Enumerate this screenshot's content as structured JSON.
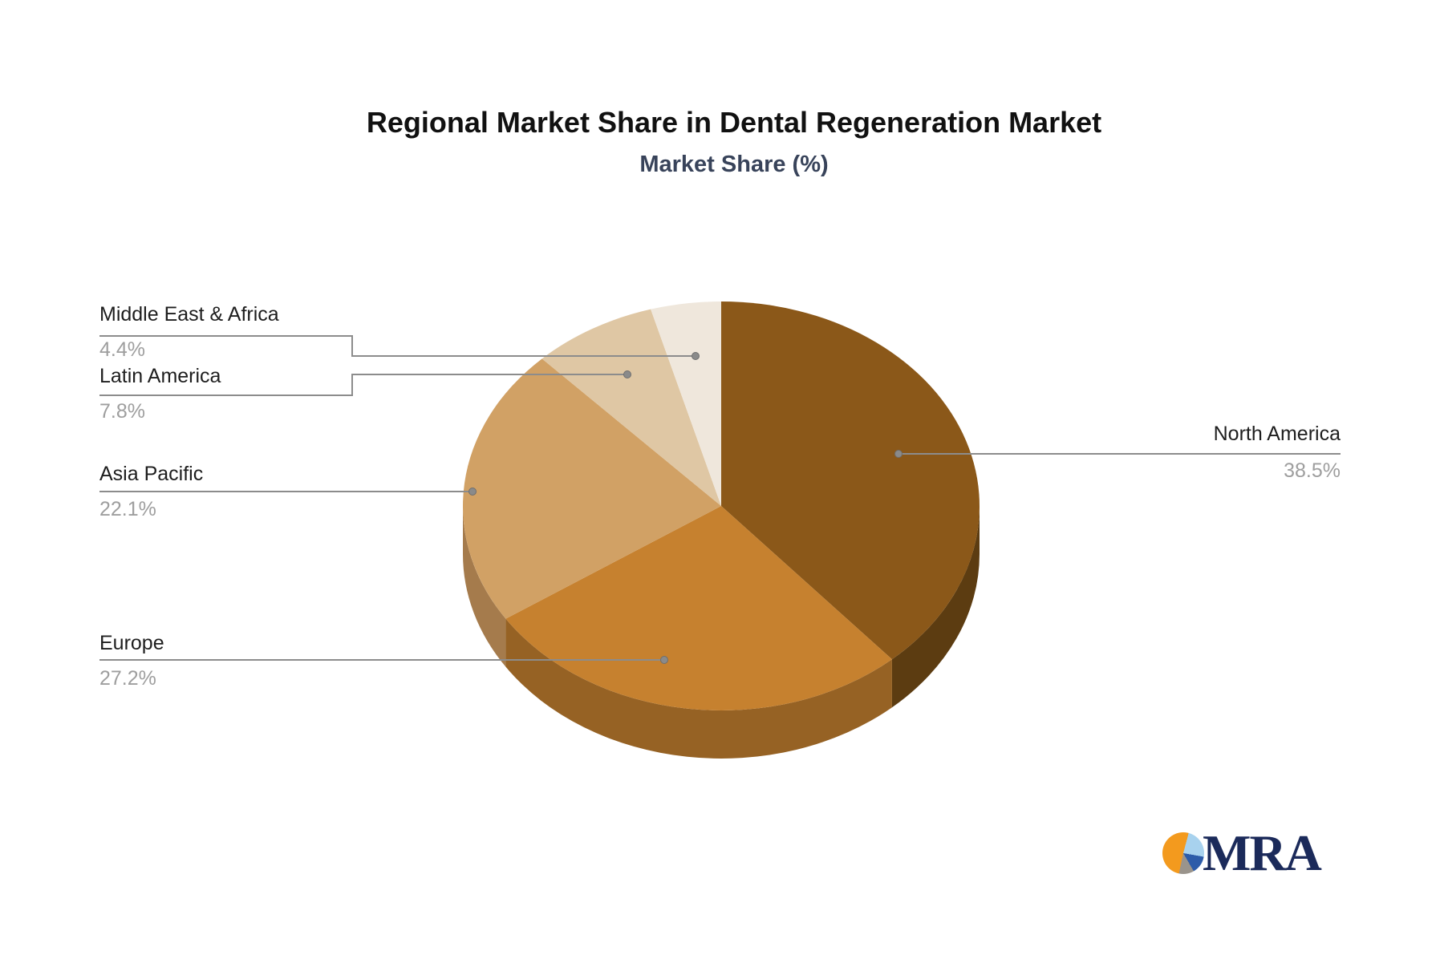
{
  "header": {
    "title": "Regional Market Share in Dental Regeneration Market",
    "subtitle": "Market Share (%)"
  },
  "chart_data": {
    "type": "pie",
    "style": "3d",
    "title": "Regional Market Share in Dental Regeneration Market",
    "subtitle": "Market Share (%)",
    "unit": "%",
    "start_angle_deg": 0,
    "direction": "clockwise",
    "legend_position": "callout-labels",
    "labels": [
      "North America",
      "Europe",
      "Asia Pacific",
      "Latin America",
      "Middle East & Africa"
    ],
    "values": [
      38.5,
      27.2,
      22.1,
      7.8,
      4.4
    ],
    "display_values": [
      "38.5%",
      "27.2%",
      "22.1%",
      "7.8%",
      "4.4%"
    ],
    "slice_colors_top": [
      "#8B5819",
      "#C6812F",
      "#D1A165",
      "#DFC7A4",
      "#EFE7DC"
    ],
    "slice_colors_side": [
      "#5C3C11",
      "#966224",
      "#A57B4C",
      "#B59A76",
      "#C9BDAC"
    ]
  },
  "style_colors": {
    "leader_line": "#8C8C8C",
    "leader_dot": "#8A8A8A",
    "label_text": "#1E1E1E",
    "value_text": "#9E9E9E",
    "title_text": "#111111",
    "subtitle_text": "#38435A"
  },
  "logo": {
    "text": "MRA",
    "text_color": "#1B2A5A",
    "pie_orange": "#F39A1E",
    "pie_lightblue": "#A8D2EE",
    "pie_blue": "#2D5CA9",
    "pie_gray": "#9A948C"
  }
}
